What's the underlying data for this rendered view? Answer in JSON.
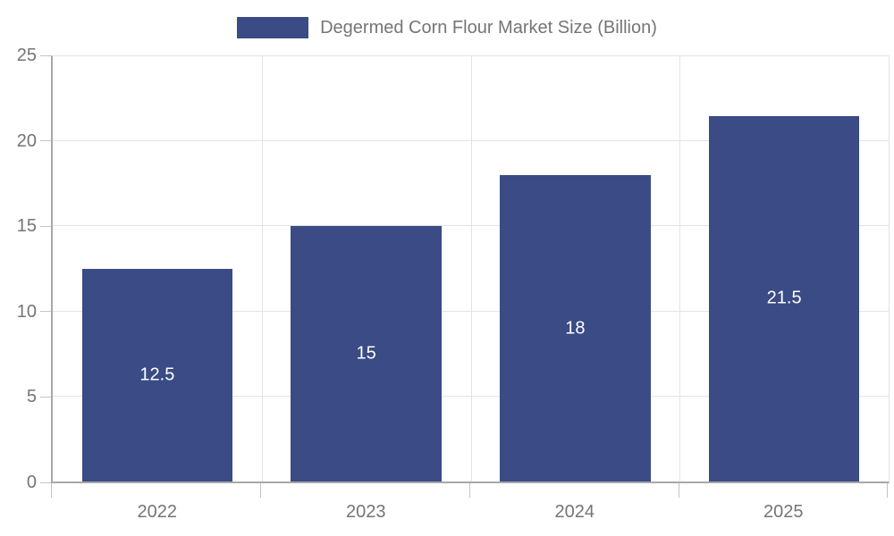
{
  "chart_data": {
    "type": "bar",
    "title": "Degermed Corn Flour Market Size (Billion)",
    "categories": [
      "2022",
      "2023",
      "2024",
      "2025"
    ],
    "values": [
      12.5,
      15,
      18,
      21.5
    ],
    "xlabel": "",
    "ylabel": "",
    "ylim": [
      0,
      25
    ],
    "yticks": [
      0,
      5,
      10,
      15,
      20,
      25
    ],
    "grid": true,
    "legend_position": "top-center",
    "bar_width_fraction": 0.72,
    "colors": {
      "bar": "#3A4B85",
      "bar_label": "#FFFFFF",
      "legend_text": "#757575",
      "tick_text": "#757575",
      "gridline": "#E3E3E3",
      "axis_major": "#A8A8A8",
      "tick_mark": "#C4C4C4"
    }
  }
}
